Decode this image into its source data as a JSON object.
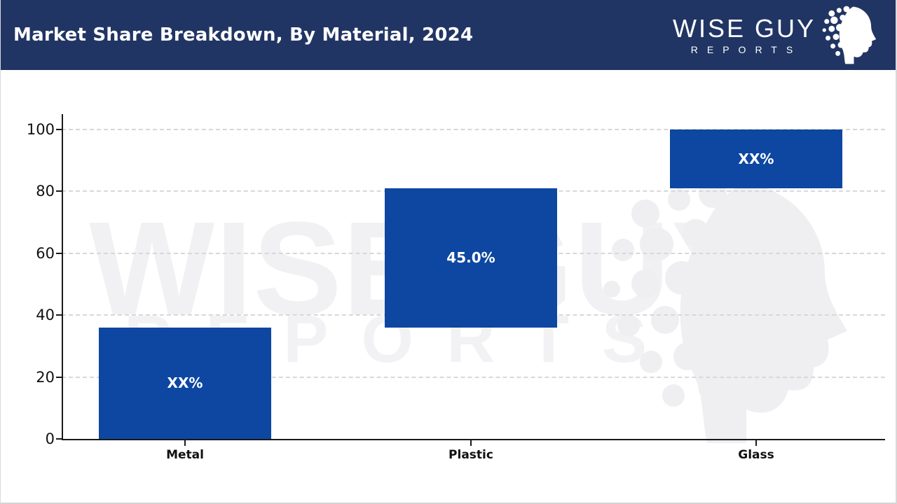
{
  "header": {
    "title": "Market Share Breakdown, By Material, 2024",
    "bg_color": "#213564",
    "logo": {
      "line1": "WISE GUY",
      "line2": "REPORTS"
    }
  },
  "watermark": {
    "line1": "WISE GUY",
    "line2": "REPORTS"
  },
  "chart_data": {
    "type": "bar",
    "subtype": "waterfall",
    "title": "Market Share Breakdown, By Material, 2024",
    "xlabel": "",
    "ylabel": "",
    "categories": [
      "Metal",
      "Plastic",
      "Glass"
    ],
    "segments": [
      {
        "category": "Metal",
        "start": 0,
        "end": 36,
        "label": "XX%"
      },
      {
        "category": "Plastic",
        "start": 36,
        "end": 81,
        "label": "45.0%"
      },
      {
        "category": "Glass",
        "start": 81,
        "end": 100,
        "label": "XX%"
      }
    ],
    "yticks": [
      0,
      20,
      40,
      60,
      80,
      100
    ],
    "ylim": [
      0,
      105
    ],
    "bar_color": "#0d47a1",
    "grid": "horizontal-dashed",
    "gridline_color": "#d8d8d8",
    "legend": "none"
  }
}
